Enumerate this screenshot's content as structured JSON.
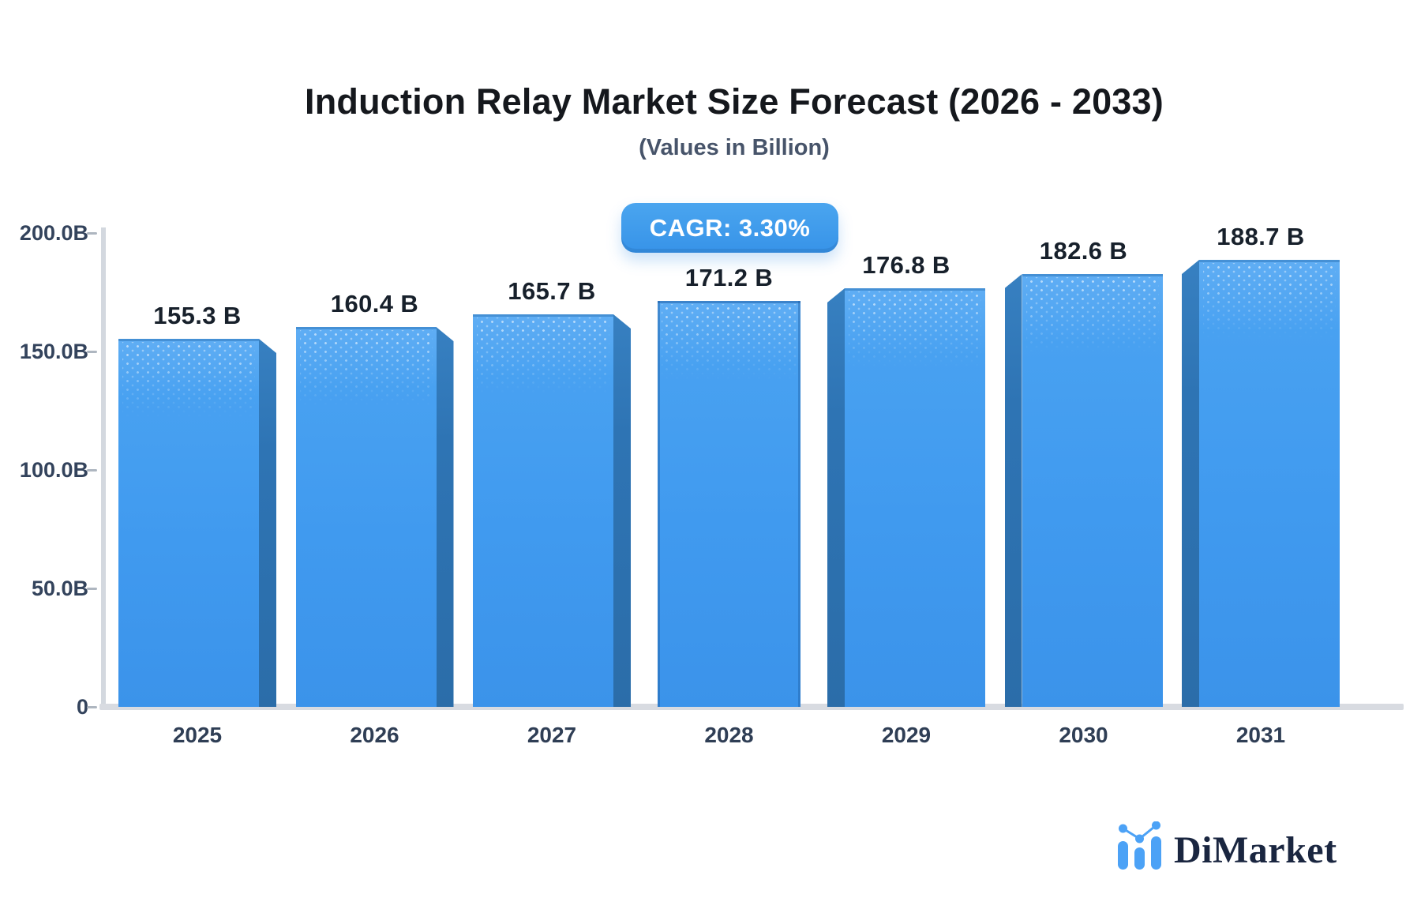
{
  "chart_data": {
    "type": "bar",
    "title": "Induction Relay Market Size Forecast (2026 - 2033)",
    "subtitle": "(Values in Billion)",
    "annotation": "CAGR: 3.30%",
    "categories": [
      "2025",
      "2026",
      "2027",
      "2028",
      "2029",
      "2030",
      "2031"
    ],
    "values": [
      155.3,
      160.4,
      165.7,
      171.2,
      176.8,
      182.6,
      188.7
    ],
    "value_labels": [
      "155.3 B",
      "160.4 B",
      "165.7 B",
      "171.2 B",
      "176.8 B",
      "182.6 B",
      "188.7 B"
    ],
    "unit": "Billion",
    "ylim": [
      0,
      200
    ],
    "y_ticks": [
      {
        "label": "200.0B",
        "value": 200
      },
      {
        "label": "150.0B",
        "value": 150
      },
      {
        "label": "100.0B",
        "value": 100
      },
      {
        "label": "50.0B",
        "value": 50
      },
      {
        "label": "0",
        "value": 0
      }
    ],
    "grid": false,
    "legend": false,
    "colors": {
      "bar_face_top": "#60AEF4",
      "bar_face_bottom": "#3B93EA",
      "bar_side": "#2E74B4",
      "badge": "#3E9CEC",
      "axis": "#D8DBE1",
      "title_text": "#15181D",
      "subtitle_text": "#47546A",
      "value_text": "#17202B",
      "tick_text": "#33435C"
    }
  },
  "branding": {
    "logo_text": "DiMarket",
    "logo_icon": "mini-bar-chart-icon"
  }
}
